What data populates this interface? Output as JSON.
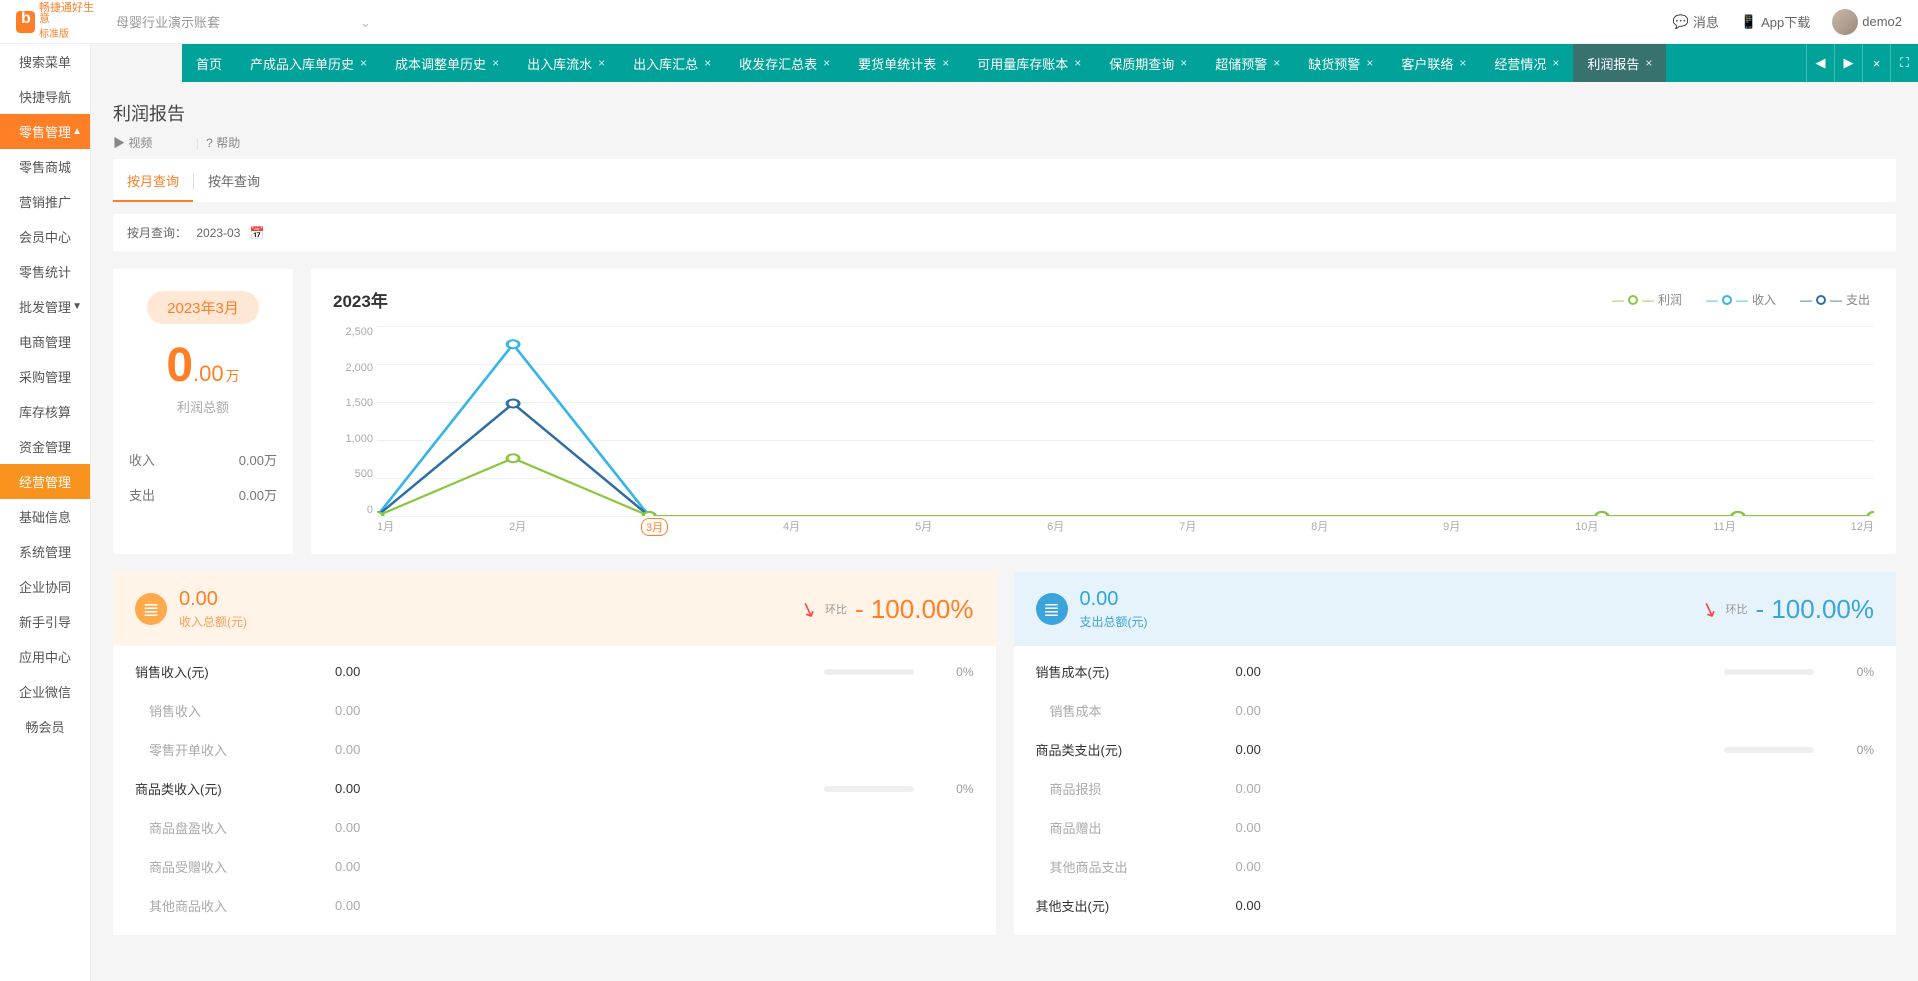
{
  "header": {
    "logo_title": "畅捷通好生意",
    "logo_sub": "标准版",
    "tenant": "母婴行业演示账套",
    "msg": "消息",
    "app": "App下载",
    "user": "demo2"
  },
  "tabs": [
    {
      "label": "首页",
      "closable": false
    },
    {
      "label": "产成品入库单历史",
      "closable": true
    },
    {
      "label": "成本调整单历史",
      "closable": true
    },
    {
      "label": "出入库流水",
      "closable": true
    },
    {
      "label": "出入库汇总",
      "closable": true
    },
    {
      "label": "收发存汇总表",
      "closable": true
    },
    {
      "label": "要货单统计表",
      "closable": true
    },
    {
      "label": "可用量库存账本",
      "closable": true
    },
    {
      "label": "保质期查询",
      "closable": true
    },
    {
      "label": "超储预警",
      "closable": true
    },
    {
      "label": "缺货预警",
      "closable": true
    },
    {
      "label": "客户联络",
      "closable": true
    },
    {
      "label": "经营情况",
      "closable": true
    },
    {
      "label": "利润报告",
      "closable": true,
      "active": true
    }
  ],
  "sidebar": [
    {
      "label": "搜索菜单"
    },
    {
      "label": "快捷导航"
    },
    {
      "label": "零售管理",
      "active": true,
      "arrow": "▲"
    },
    {
      "label": "零售商城",
      "sub": true
    },
    {
      "label": "营销推广",
      "sub": true
    },
    {
      "label": "会员中心",
      "sub": true
    },
    {
      "label": "零售统计",
      "sub": true
    },
    {
      "label": "批发管理",
      "arrow": "▼"
    },
    {
      "label": "电商管理"
    },
    {
      "label": "采购管理"
    },
    {
      "label": "库存核算"
    },
    {
      "label": "资金管理"
    },
    {
      "label": "经营管理",
      "active2": true
    },
    {
      "label": "基础信息"
    },
    {
      "label": "系统管理"
    },
    {
      "label": "企业协同"
    },
    {
      "label": "新手引导"
    },
    {
      "label": "应用中心"
    },
    {
      "label": "企业微信"
    },
    {
      "label": "畅会员"
    }
  ],
  "page": {
    "title": "利润报告",
    "link_video": "视频",
    "link_help": "帮助",
    "subtabs": [
      "按月查询",
      "按年查询"
    ],
    "subtab_active": 0,
    "month_label": "按月查询：",
    "month_value": "2023-03"
  },
  "summary": {
    "pill": "2023年3月",
    "big_int": "0",
    "big_dec": ".00",
    "big_unit": "万",
    "big_label": "利润总额",
    "lines": [
      {
        "k": "收入",
        "v": "0.00万"
      },
      {
        "k": "支出",
        "v": "0.00万"
      }
    ]
  },
  "chart": {
    "title": "2023年",
    "legend": [
      {
        "name": "利润",
        "color": "#8bc63f"
      },
      {
        "name": "收入",
        "color": "#36b5e6"
      },
      {
        "name": "支出",
        "color": "#2e6ea5"
      }
    ],
    "y_ticks": [
      "2,500",
      "2,000",
      "1,500",
      "1,000",
      "500",
      "0"
    ],
    "y_max": 2500,
    "x_labels": [
      "1月",
      "2月",
      "3月",
      "4月",
      "5月",
      "6月",
      "7月",
      "8月",
      "9月",
      "10月",
      "11月",
      "12月"
    ],
    "x_current_index": 2,
    "series": {
      "profit": [
        0,
        760,
        0,
        0,
        0,
        0,
        0,
        0,
        0,
        0,
        0,
        0
      ],
      "income": [
        0,
        2260,
        0,
        0,
        0,
        0,
        0,
        0,
        0,
        0,
        0,
        0
      ],
      "expense": [
        0,
        1480,
        0,
        0,
        0,
        0,
        0,
        0,
        0,
        0,
        0,
        0
      ]
    },
    "grid_color": "#f0f0f0",
    "bg_color": "#ffffff"
  },
  "income_panel": {
    "value": "0.00",
    "label": "收入总额(元)",
    "pct": "- 100.00%",
    "huanbi": "环比",
    "accent": "#ff7f27",
    "rows": [
      {
        "lbl": "销售收入(元)",
        "val": "0.00",
        "pct": "0%",
        "head": true
      },
      {
        "lbl": "销售收入",
        "val": "0.00",
        "sub": true
      },
      {
        "lbl": "零售开单收入",
        "val": "0.00",
        "sub": true
      },
      {
        "lbl": "商品类收入(元)",
        "val": "0.00",
        "pct": "0%",
        "head": true
      },
      {
        "lbl": "商品盘盈收入",
        "val": "0.00",
        "sub": true
      },
      {
        "lbl": "商品受赠收入",
        "val": "0.00",
        "sub": true
      },
      {
        "lbl": "其他商品收入",
        "val": "0.00",
        "sub": true
      }
    ]
  },
  "expense_panel": {
    "value": "0.00",
    "label": "支出总额(元)",
    "pct": "- 100.00%",
    "huanbi": "环比",
    "accent": "#3ba4dc",
    "rows": [
      {
        "lbl": "销售成本(元)",
        "val": "0.00",
        "pct": "0%",
        "head": true
      },
      {
        "lbl": "销售成本",
        "val": "0.00",
        "sub": true
      },
      {
        "lbl": "商品类支出(元)",
        "val": "0.00",
        "pct": "0%",
        "head": true
      },
      {
        "lbl": "商品报损",
        "val": "0.00",
        "sub": true
      },
      {
        "lbl": "商品赠出",
        "val": "0.00",
        "sub": true
      },
      {
        "lbl": "其他商品支出",
        "val": "0.00",
        "sub": true
      },
      {
        "lbl": "其他支出(元)",
        "val": "0.00",
        "head": true
      }
    ]
  }
}
